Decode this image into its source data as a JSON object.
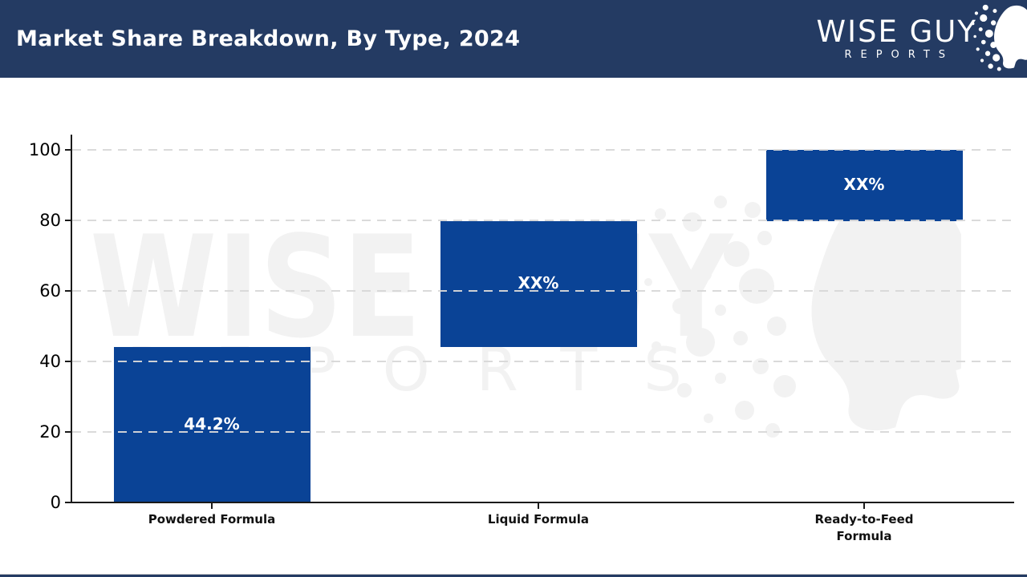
{
  "header": {
    "title": "Market Share Breakdown, By Type, 2024",
    "logo": {
      "line1": "WISE GUY",
      "line2": "REPORTS"
    },
    "bg_color": "#243b63"
  },
  "watermark": {
    "line1": "WISE GUY",
    "line2": "REPORTS"
  },
  "chart_data": {
    "type": "bar",
    "variant": "waterfall",
    "title": "Market Share Breakdown, By Type, 2024",
    "categories": [
      "Powdered Formula",
      "Liquid Formula",
      "Ready-to-Feed Formula"
    ],
    "segments": [
      {
        "category": "Powdered Formula",
        "start": 0,
        "end": 44.2,
        "value_label": "44.2%"
      },
      {
        "category": "Liquid Formula",
        "start": 44.2,
        "end": 79.8,
        "value_label": "XX%"
      },
      {
        "category": "Ready-to-Feed Formula",
        "start": 79.8,
        "end": 100,
        "value_label": "XX%"
      }
    ],
    "ylim": [
      0,
      100
    ],
    "yticks": [
      0,
      20,
      40,
      60,
      80,
      100
    ],
    "xlabel": "",
    "ylabel": "",
    "grid": "horizontal-dashed",
    "legend": "none",
    "colors": {
      "bar": "#0a4396",
      "value_label": "#ffffff",
      "axis": "#1a1a1a",
      "grid": "#d8d8d8",
      "header_bg": "#243b63",
      "watermark": "#f2f2f2"
    }
  }
}
